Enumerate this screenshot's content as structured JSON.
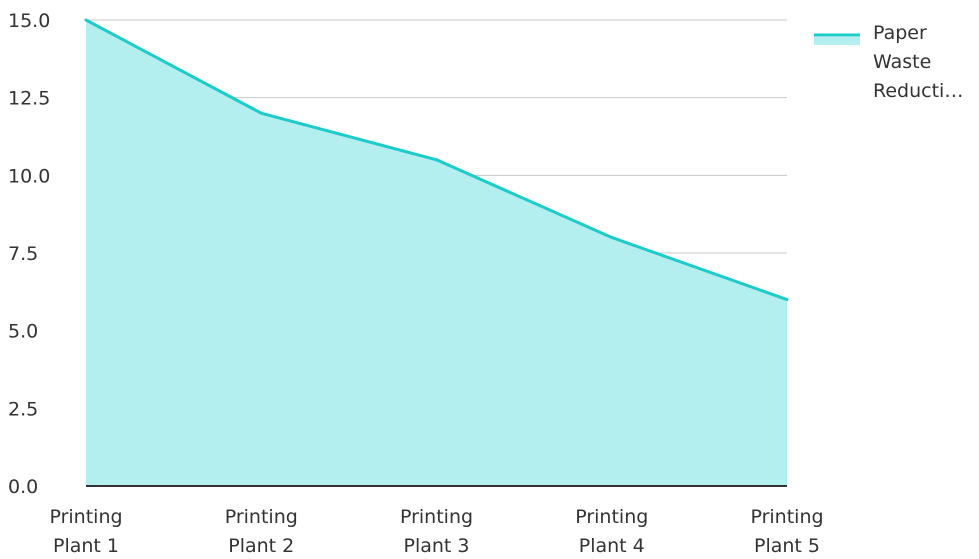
{
  "chart_data": {
    "type": "area",
    "title": "",
    "xlabel": "",
    "ylabel": "",
    "categories": [
      [
        "Printing",
        "Plant 1"
      ],
      [
        "Printing",
        "Plant 2"
      ],
      [
        "Printing",
        "Plant 3"
      ],
      [
        "Printing",
        "Plant 4"
      ],
      [
        "Printing",
        "Plant 5"
      ]
    ],
    "series": [
      {
        "name": [
          "Paper",
          "Waste",
          "Reducti…"
        ],
        "values": [
          15,
          12,
          10.5,
          8,
          6
        ],
        "line_color": "#1ECBCB",
        "fill_color": "#B2EFEE"
      }
    ],
    "ylim": [
      0,
      15
    ],
    "yticks": [
      "0.0",
      "2.5",
      "5.0",
      "7.5",
      "10.0",
      "12.5",
      "15.0"
    ],
    "grid": true,
    "grid_color": "#C8C8C8",
    "legend_position": "top-right"
  }
}
